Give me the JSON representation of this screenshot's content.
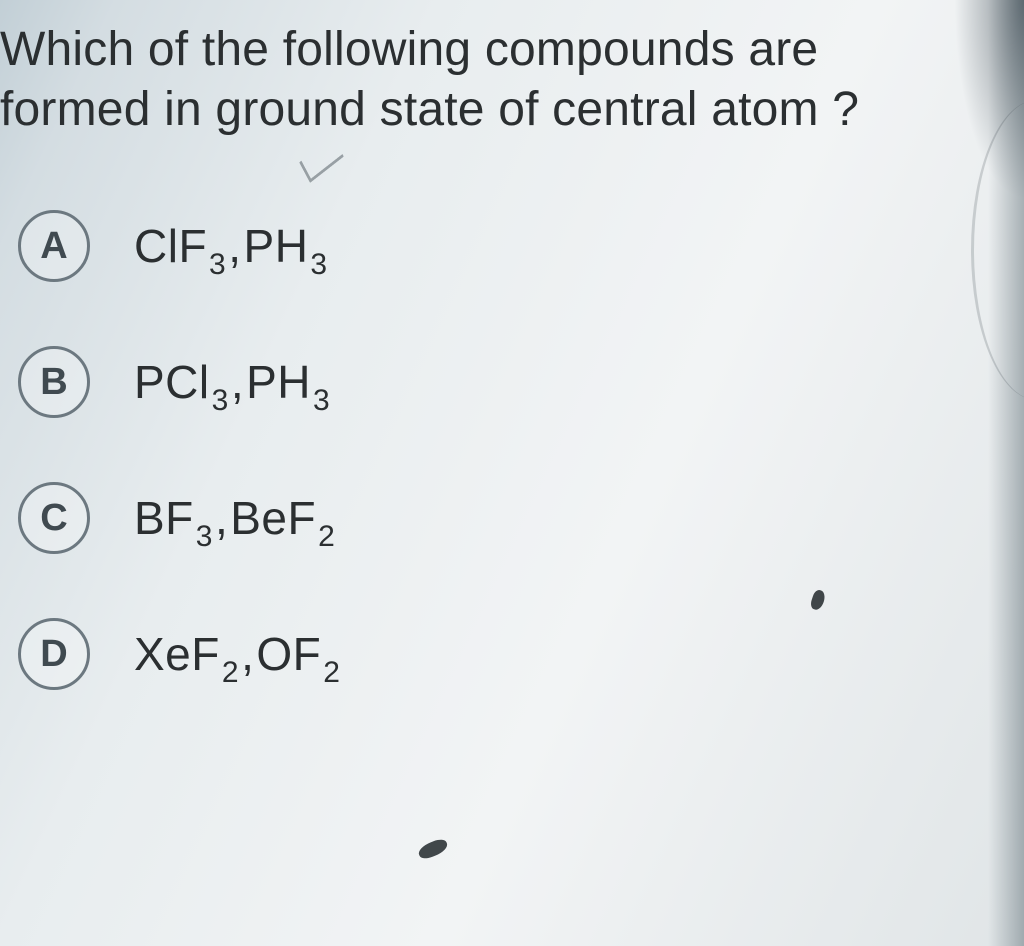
{
  "question": {
    "line1": "Which of the following compounds are",
    "line2": "formed in ground state of central atom ?"
  },
  "options": {
    "a": {
      "letter": "A",
      "c1": "ClF",
      "s1": "3",
      "sep": ", ",
      "c2": "PH",
      "s2": "3"
    },
    "b": {
      "letter": "B",
      "c1": "PCl",
      "s1": "3",
      "sep": ", ",
      "c2": "PH",
      "s2": "3"
    },
    "c": {
      "letter": "C",
      "c1": "BF",
      "s1": "3",
      "sep": ", ",
      "c2": "BeF",
      "s2": "2"
    },
    "d": {
      "letter": "D",
      "c1": "XeF",
      "s1": "2",
      "sep": ", ",
      "c2": "OF",
      "s2": "2"
    }
  }
}
